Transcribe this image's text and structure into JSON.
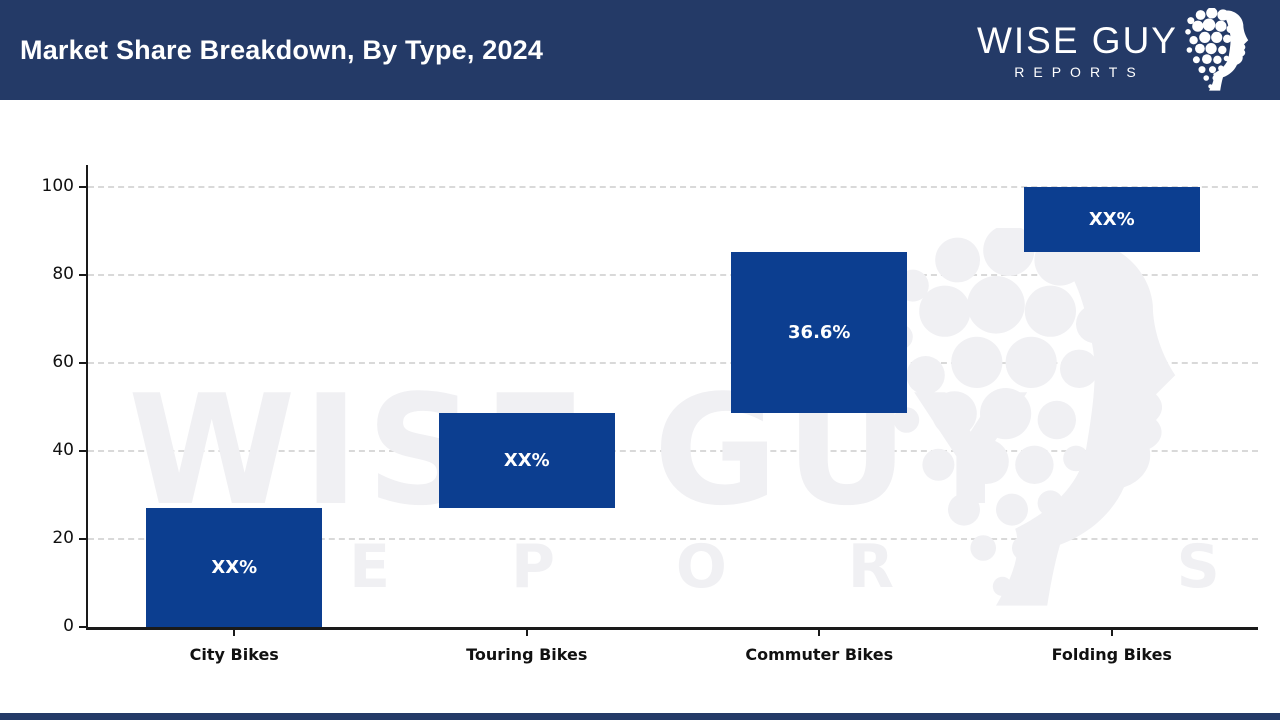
{
  "header": {
    "title": "Market Share Breakdown, By Type, 2024",
    "logo": {
      "line1": "WISE GUY",
      "line2": "REPORTS"
    }
  },
  "watermark": {
    "line1": "WISE GUY",
    "line2": "R E P O R T S"
  },
  "chart_data": {
    "type": "bar",
    "subtype": "floating-waterfall",
    "title": "Market Share Breakdown, By Type, 2024",
    "categories": [
      "City Bikes",
      "Touring Bikes",
      "Commuter Bikes",
      "Folding Bikes"
    ],
    "bars": [
      {
        "category": "City Bikes",
        "start": 0,
        "end": 27.1,
        "label": "XX%"
      },
      {
        "category": "Touring Bikes",
        "start": 27.1,
        "end": 48.7,
        "label": "XX%"
      },
      {
        "category": "Commuter Bikes",
        "start": 48.7,
        "end": 85.3,
        "label": "36.6%"
      },
      {
        "category": "Folding Bikes",
        "start": 85.3,
        "end": 100,
        "label": "XX%"
      }
    ],
    "yticks": [
      0,
      20,
      40,
      60,
      80,
      100
    ],
    "ylim": [
      0,
      105
    ],
    "xlabel": "",
    "ylabel": "",
    "grid": "horizontal-dashed",
    "legend": "none"
  },
  "colors": {
    "header_bg": "#243a67",
    "footer_bg": "#243a67",
    "bar": "#0c3e90",
    "bar_label": "#ffffff",
    "axis": "#1a1a1a",
    "grid": "#d9d9d9",
    "watermark": "#f0f0f3",
    "title_text": "#ffffff"
  }
}
